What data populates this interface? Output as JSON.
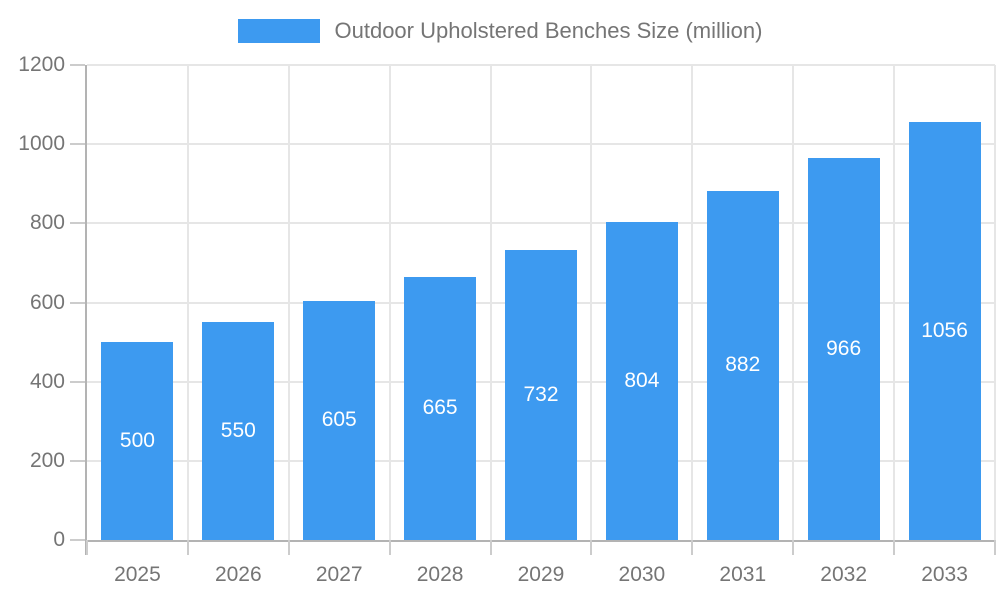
{
  "chart_data": {
    "type": "bar",
    "title": "",
    "legend": {
      "label": "Outdoor Upholstered Benches Size (million)",
      "position": "top"
    },
    "categories": [
      "2025",
      "2026",
      "2027",
      "2028",
      "2029",
      "2030",
      "2031",
      "2032",
      "2033"
    ],
    "values": [
      500,
      550,
      605,
      665,
      732,
      804,
      882,
      966,
      1056
    ],
    "value_labels_shown": true,
    "xlabel": "",
    "ylabel": "",
    "ylim": [
      0,
      1200
    ],
    "ytick_interval": 200,
    "yticks": [
      0,
      200,
      400,
      600,
      800,
      1000,
      1200
    ],
    "grid": true,
    "colors": {
      "bar": "#3d9af0",
      "axis_text": "#757575",
      "legend_text": "#757575",
      "value_text": "#ffffff",
      "gridline": "#e6e6e6",
      "axis_line": "#b3b3b3",
      "tick": "#cccccc",
      "background": "#ffffff"
    }
  }
}
